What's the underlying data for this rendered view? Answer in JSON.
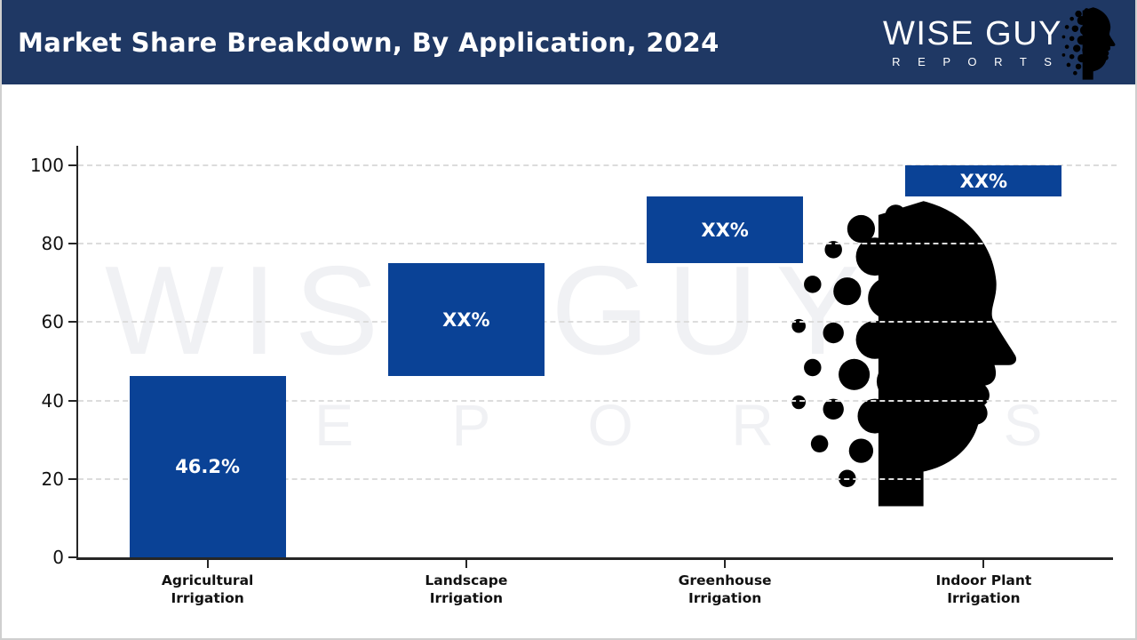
{
  "header": {
    "title": "Market Share Breakdown, By Application, 2024",
    "logo": {
      "line1": "WISE GUY",
      "line2": "R E P O R T S"
    }
  },
  "watermark": {
    "line1": "WISE GUY",
    "line2": "R E P O R T S"
  },
  "colors": {
    "header_bg": "#1f3864",
    "bar": "#0a4296",
    "axis": "#262626",
    "grid": "#dcdcdc",
    "bar_label": "#ffffff",
    "tick_label": "#111111",
    "watermark": "#f0f1f4",
    "page_border": "#cfcfcf"
  },
  "chart_data": {
    "type": "bar",
    "subtype": "waterfall",
    "title": "Market Share Breakdown, By Application, 2024",
    "categories": [
      "Agricultural Irrigation",
      "Landscape Irrigation",
      "Greenhouse Irrigation",
      "Indoor Plant Irrigation"
    ],
    "segments": [
      {
        "category": "Agricultural Irrigation",
        "start": 0,
        "end": 46.2,
        "label": "46.2%"
      },
      {
        "category": "Landscape Irrigation",
        "start": 46.2,
        "end": 75,
        "label": "XX%"
      },
      {
        "category": "Greenhouse Irrigation",
        "start": 75,
        "end": 92,
        "label": "XX%"
      },
      {
        "category": "Indoor Plant Irrigation",
        "start": 92,
        "end": 100,
        "label": "XX%"
      }
    ],
    "yticks": [
      0,
      20,
      40,
      60,
      80,
      100
    ],
    "ylim": [
      0,
      100
    ],
    "xlabel": "",
    "ylabel": "",
    "grid": "horizontal-dashed",
    "legend": "none"
  }
}
